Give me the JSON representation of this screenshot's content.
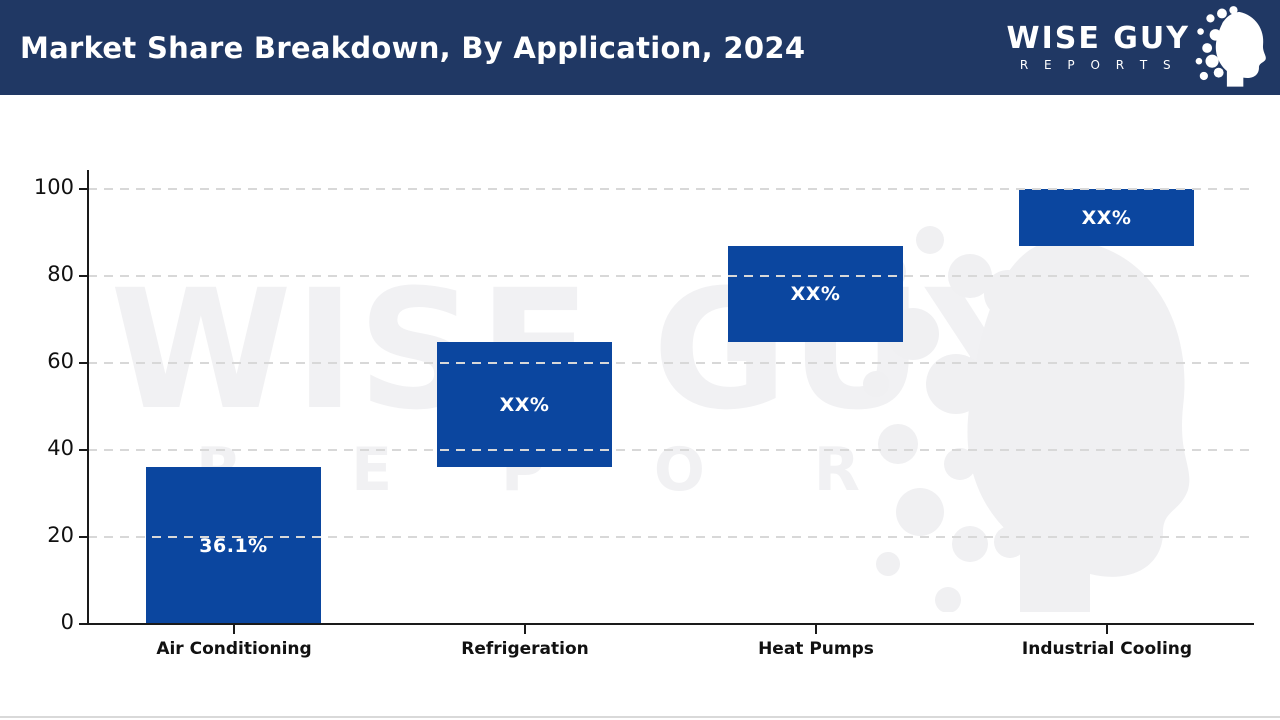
{
  "header": {
    "title": "Market Share Breakdown, By Application, 2024",
    "logo": {
      "line1": "WISE GUY",
      "line2": "R E P O R T S"
    }
  },
  "watermark": {
    "line1": "WISE GUY",
    "line2": "R E P O R T S"
  },
  "colors": {
    "header_bg": "#203864",
    "bar": "#0b469f",
    "grid": "#d8d8d8",
    "axis": "#1a1a1a",
    "watermark": "#f1f1f3"
  },
  "chart_data": {
    "type": "bar",
    "subtype": "waterfall",
    "title": "Market Share Breakdown, By Application, 2024",
    "categories": [
      "Air Conditioning",
      "Refrigeration",
      "Heat Pumps",
      "Industrial Cooling"
    ],
    "segments": [
      {
        "category": "Air Conditioning",
        "start": 0,
        "end": 36.1,
        "value": 36.1,
        "label": "36.1%"
      },
      {
        "category": "Refrigeration",
        "start": 36.1,
        "end": 64.8,
        "value": 28.7,
        "label": "XX%"
      },
      {
        "category": "Heat Pumps",
        "start": 64.8,
        "end": 86.9,
        "value": 22.1,
        "label": "XX%"
      },
      {
        "category": "Industrial Cooling",
        "start": 86.9,
        "end": 100,
        "value": 13.1,
        "label": "XX%"
      }
    ],
    "yticks": [
      0,
      20,
      40,
      60,
      80,
      100
    ],
    "ylim": [
      0,
      100
    ],
    "xlabel": "",
    "ylabel": "",
    "grid": true,
    "grid_style": "dashed",
    "legend": "none",
    "bar_color": "#0b469f",
    "label_color": "#ffffff"
  }
}
